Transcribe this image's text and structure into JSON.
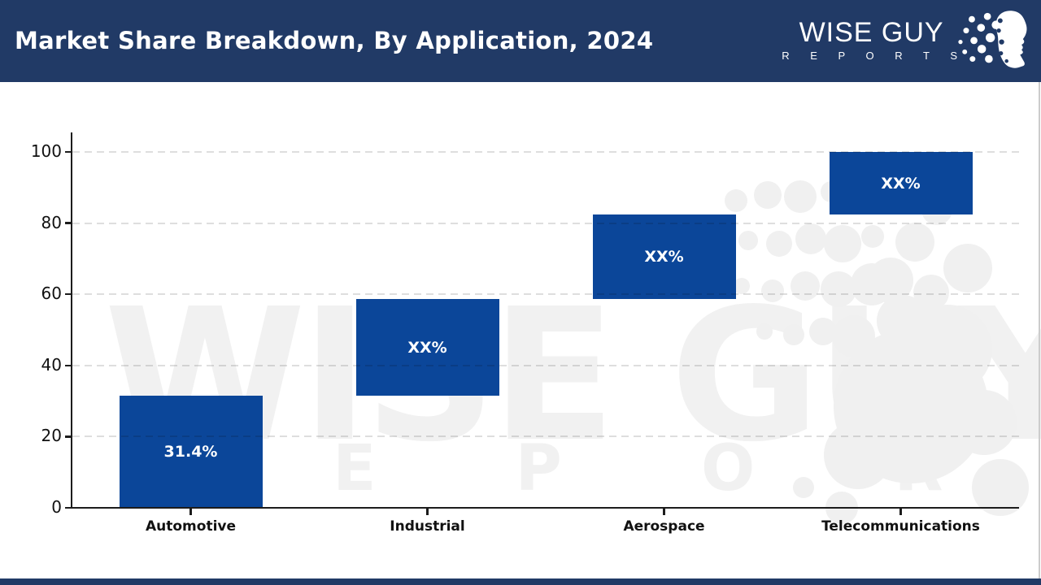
{
  "header": {
    "title": "Market Share Breakdown, By Application, 2024",
    "logo": {
      "line1": "WISE GUY",
      "line2": "REPORTS"
    }
  },
  "watermark": {
    "line1": "WISE GUY",
    "line2": "REPORTS"
  },
  "chart_data": {
    "type": "bar",
    "subtype": "waterfall",
    "title": "Market Share Breakdown, By Application, 2024",
    "categories": [
      "Automotive",
      "Industrial",
      "Aerospace",
      "Telecommunications"
    ],
    "segments": [
      {
        "category": "Automotive",
        "start": 0,
        "end": 31.4,
        "label": "31.4%"
      },
      {
        "category": "Industrial",
        "start": 31.4,
        "end": 58.7,
        "label": "XX%"
      },
      {
        "category": "Aerospace",
        "start": 58.7,
        "end": 82.4,
        "label": "XX%"
      },
      {
        "category": "Telecommunications",
        "start": 82.4,
        "end": 100,
        "label": "XX%"
      }
    ],
    "yticks": [
      0,
      20,
      40,
      60,
      80,
      100
    ],
    "ylim": [
      0,
      100
    ],
    "xlabel": "",
    "ylabel": "",
    "grid": "horizontal-dashed",
    "legend": "none"
  },
  "colors": {
    "header_bg": "#213a66",
    "footer_bg": "#213a66",
    "bar": "#0b4699",
    "bar_label": "#ffffff",
    "axis": "#1c1c1c",
    "grid": "#dddddd",
    "watermark": "#f1f1f1",
    "right_border": "#cccccc"
  }
}
